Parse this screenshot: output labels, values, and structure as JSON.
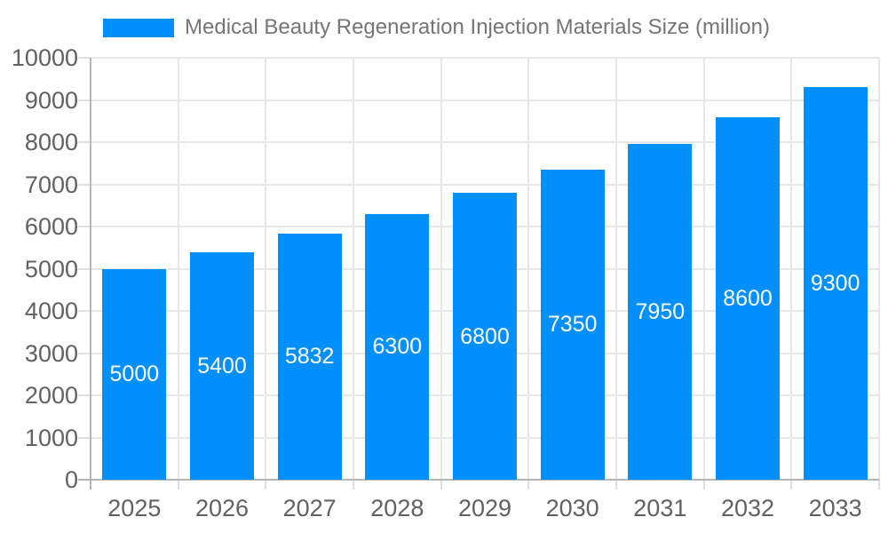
{
  "chart_data": {
    "type": "bar",
    "title": "Medical Beauty Regeneration Injection Materials Size (million)",
    "categories": [
      "2025",
      "2026",
      "2027",
      "2028",
      "2029",
      "2030",
      "2031",
      "2032",
      "2033"
    ],
    "values": [
      5000,
      5400,
      5832,
      6300,
      6800,
      7350,
      7950,
      8600,
      9300
    ],
    "xlabel": "",
    "ylabel": "",
    "ylim": [
      0,
      10000
    ],
    "yticks": [
      0,
      1000,
      2000,
      3000,
      4000,
      5000,
      6000,
      7000,
      8000,
      9000,
      10000
    ],
    "grid": true,
    "legend_position": "top-left",
    "bar_labels_inside": true
  },
  "legend": {
    "label": "Medical Beauty Regeneration Injection Materials Size (million)"
  },
  "colors": {
    "bar": "#008FFB",
    "bar_label": "#FFFFFF",
    "gridline": "#E7E7E7",
    "tick": "#E0E0E0",
    "axis_line": "#B4B4B4",
    "tick_label": "#616161",
    "legend_text": "#757575",
    "background": "#FFFFFF"
  }
}
